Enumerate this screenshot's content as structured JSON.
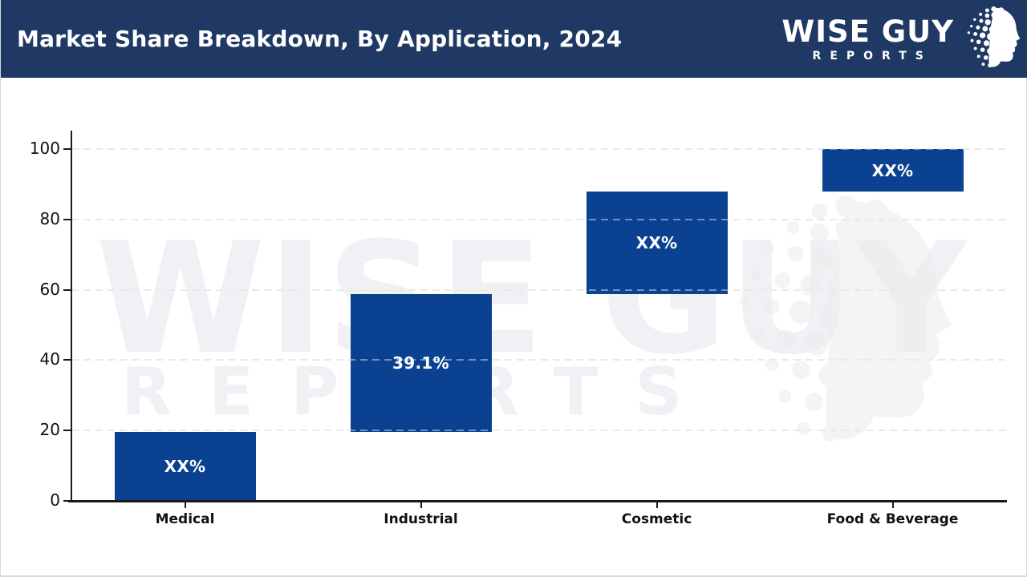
{
  "header": {
    "title": "Market Share Breakdown, By Application, 2024",
    "bg_color": "#1f3864",
    "logo": {
      "line1": "WISE GUY",
      "line2": "REPORTS"
    }
  },
  "watermark": {
    "line1": "WISE GUY",
    "line2": "REPORTS"
  },
  "chart_data": {
    "type": "bar",
    "variant": "waterfall-segment",
    "title": "Market Share Breakdown, By Application, 2024",
    "categories": [
      "Medical",
      "Industrial",
      "Cosmetic",
      "Food & Beverage"
    ],
    "segments": [
      {
        "category": "Medical",
        "start": 0,
        "end": 19.6,
        "label": "XX%"
      },
      {
        "category": "Industrial",
        "start": 19.6,
        "end": 58.7,
        "value": 39.1,
        "label": "39.1%"
      },
      {
        "category": "Cosmetic",
        "start": 58.7,
        "end": 87.9,
        "label": "XX%"
      },
      {
        "category": "Food & Beverage",
        "start": 87.9,
        "end": 100,
        "label": "XX%"
      }
    ],
    "y_ticks": [
      0,
      20,
      40,
      60,
      80,
      100
    ],
    "ylim": [
      0,
      105
    ],
    "xlabel": "",
    "ylabel": "",
    "legend": "none",
    "grid": "dashed-horizontal",
    "bar_color": "#0a4190",
    "grid_color": "#d9d9d9",
    "axis_color": "#1a1a1a"
  }
}
